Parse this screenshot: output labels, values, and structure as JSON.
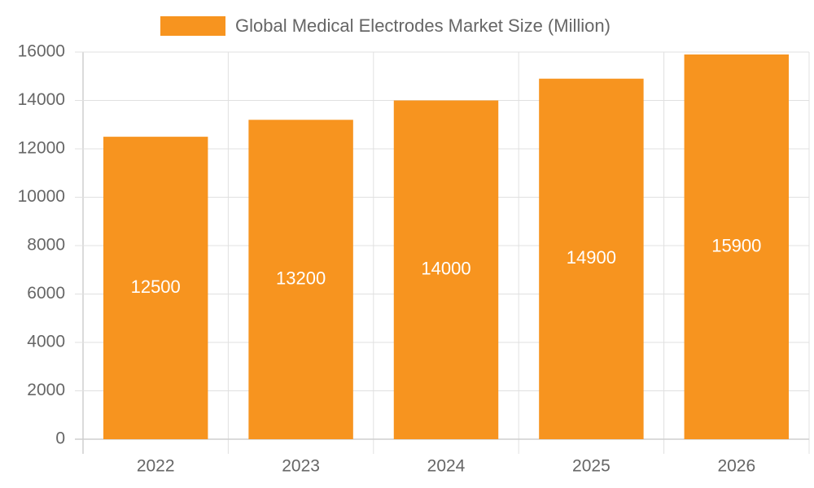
{
  "chart_data": {
    "type": "bar",
    "categories": [
      "2022",
      "2023",
      "2024",
      "2025",
      "2026"
    ],
    "series": [
      {
        "name": "Global Medical Electrodes Market Size (Million)",
        "color": "#f7941f",
        "values": [
          12500,
          13200,
          14000,
          14900,
          15900
        ]
      }
    ],
    "ylim": [
      0,
      16000
    ],
    "yticks": [
      0,
      2000,
      4000,
      6000,
      8000,
      10000,
      12000,
      14000,
      16000
    ],
    "grid": true,
    "legend": "top",
    "data_labels": true
  }
}
